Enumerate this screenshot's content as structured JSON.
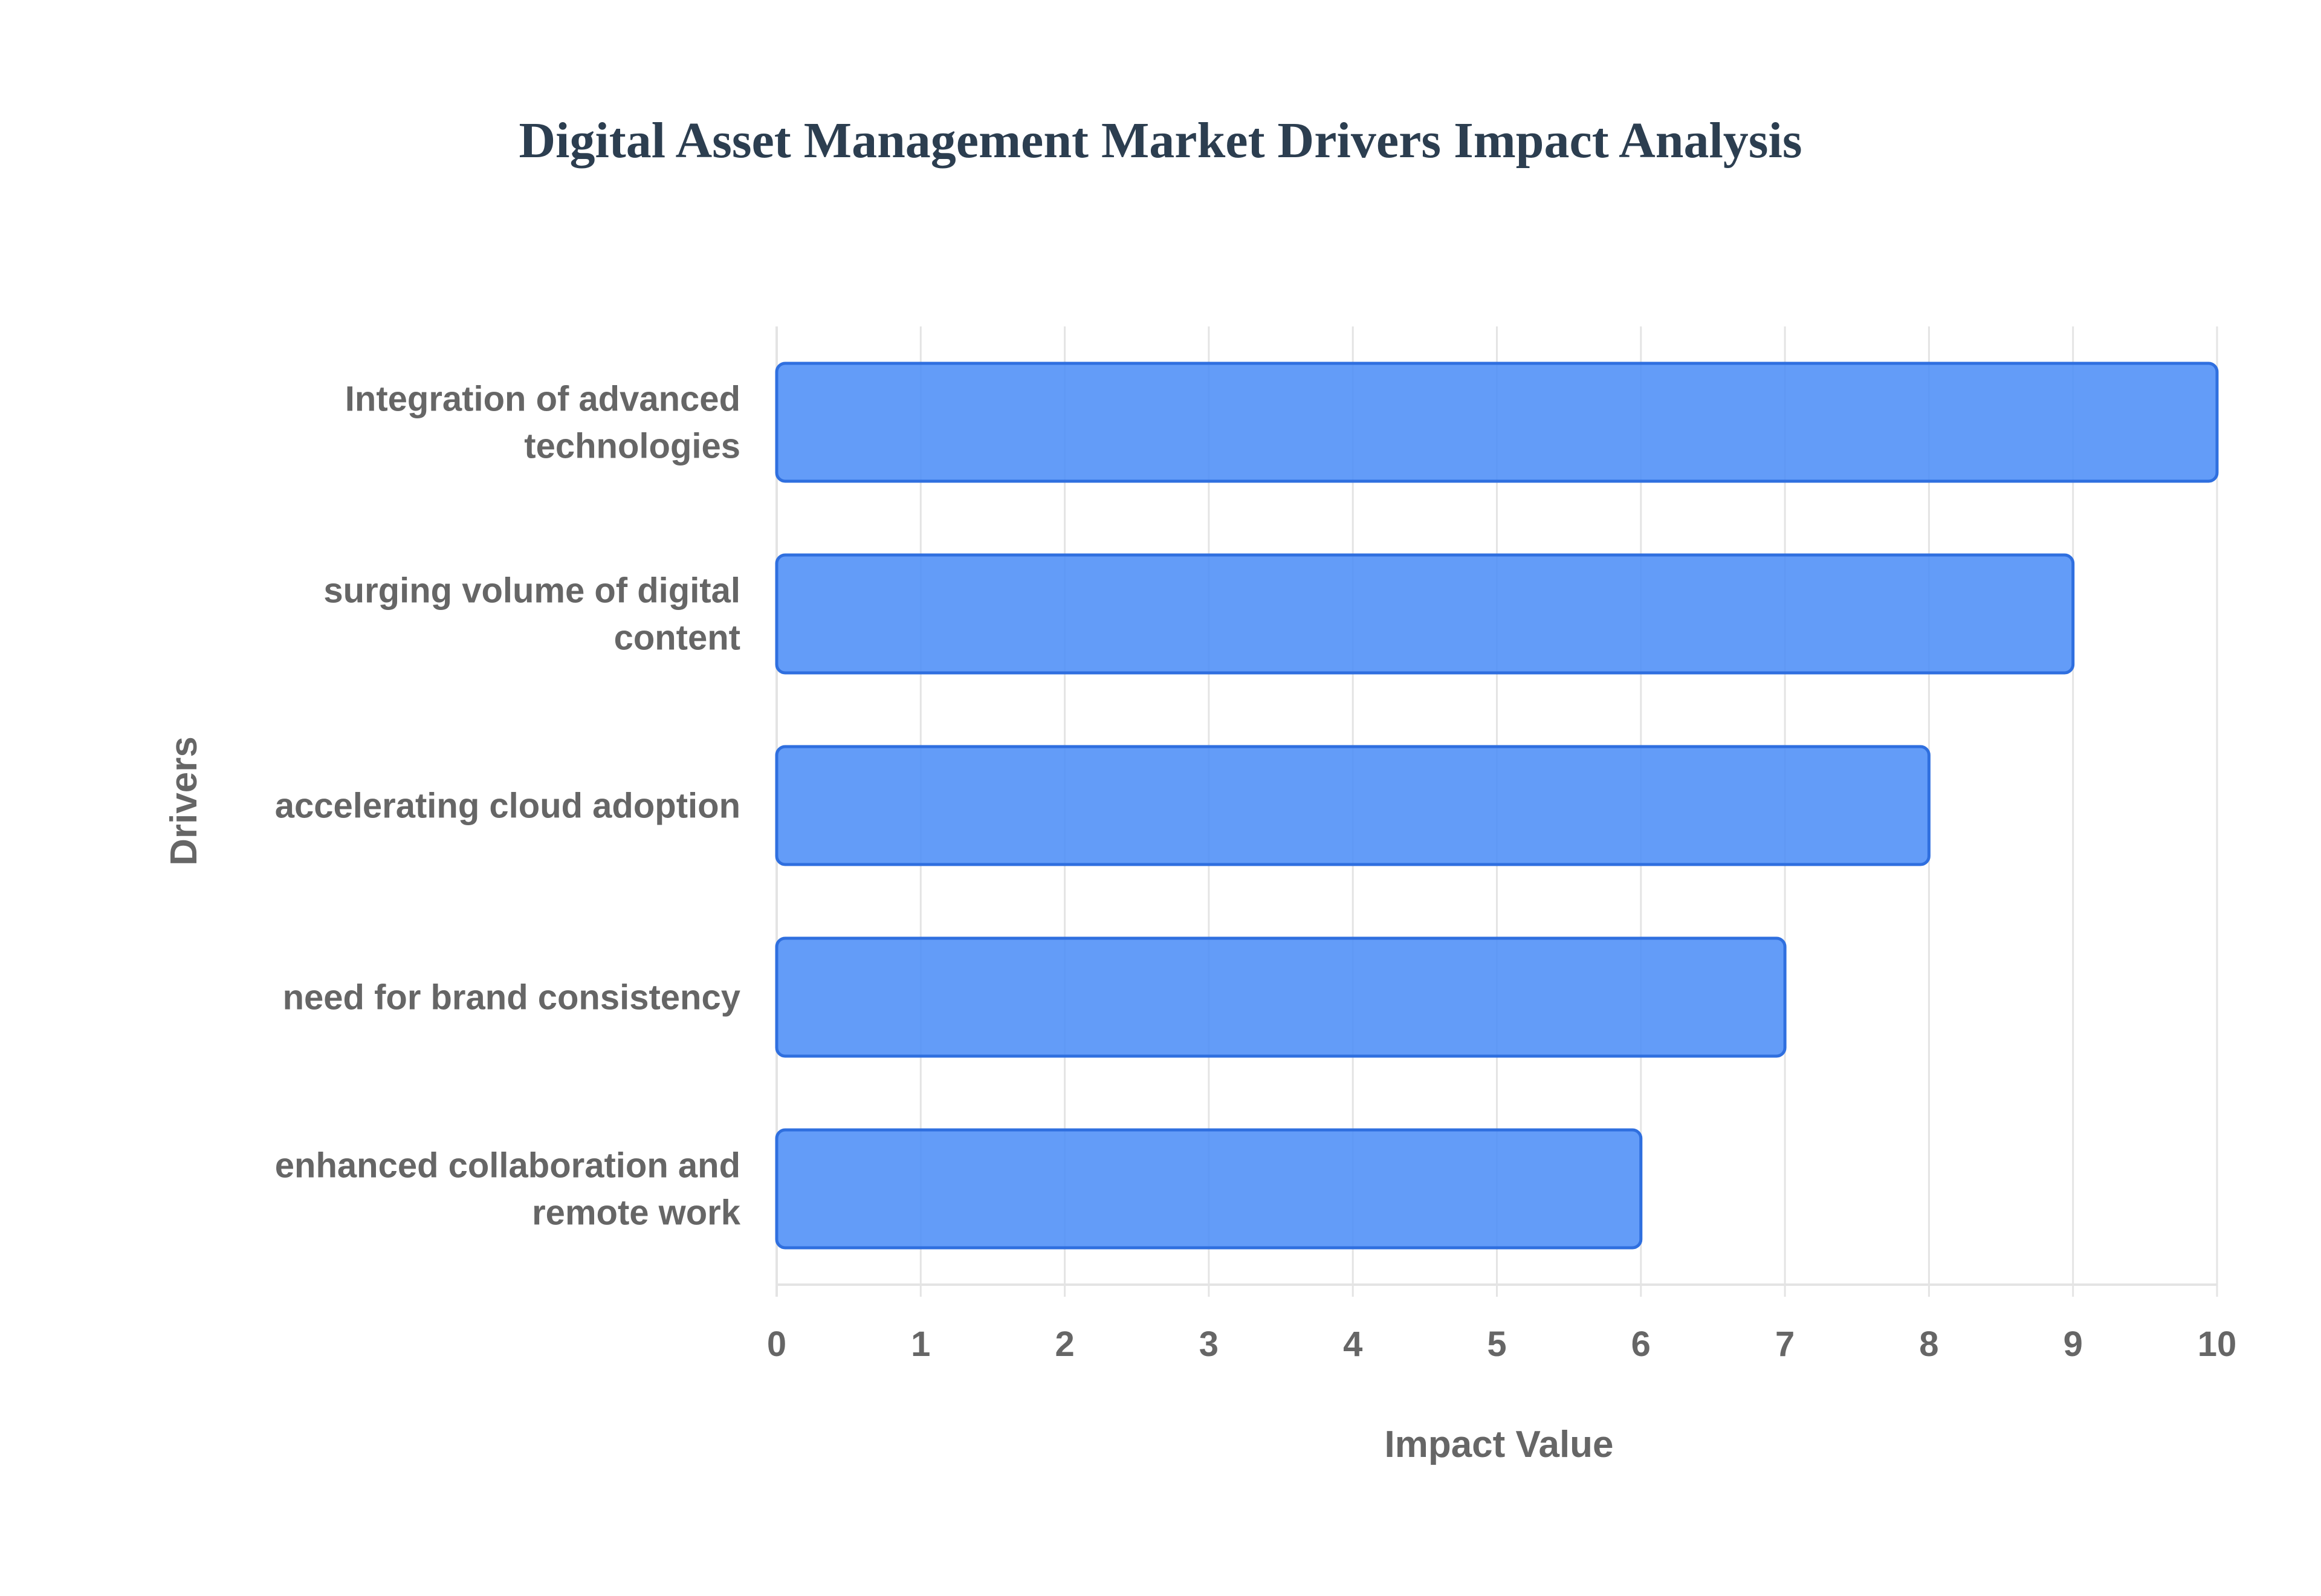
{
  "chart_data": {
    "type": "bar",
    "orientation": "horizontal",
    "title": "Digital Asset Management Market Drivers Impact Analysis",
    "xlabel": "Impact Value",
    "ylabel": "Drivers",
    "categories": [
      [
        "Integration of advanced",
        "technologies"
      ],
      [
        "surging volume of digital",
        "content"
      ],
      [
        "accelerating cloud adoption"
      ],
      [
        "need for brand consistency"
      ],
      [
        "enhanced collaboration and",
        "remote work"
      ]
    ],
    "values": [
      10,
      9,
      8,
      7,
      6
    ],
    "xlim": [
      0,
      10
    ],
    "xticks": [
      "0",
      "1",
      "2",
      "3",
      "4",
      "5",
      "6",
      "7",
      "8",
      "9",
      "10"
    ],
    "grid": true,
    "legend": "none",
    "colors": {
      "bar_fill": "#4d8ef7",
      "bar_stroke": "#2f6fdf",
      "grid": "#e4e4e4",
      "title": "#2c3e50",
      "label": "#666666"
    }
  }
}
